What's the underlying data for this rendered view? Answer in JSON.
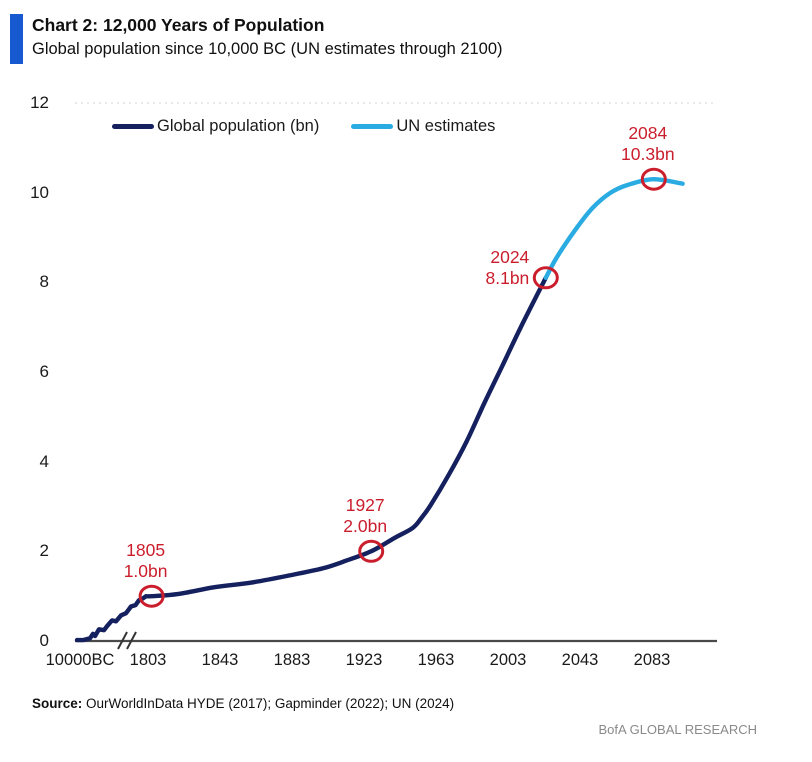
{
  "header": {
    "title": "Chart 2: 12,000 Years of Population",
    "subtitle": "Global population since 10,000 BC (UN estimates through 2100)"
  },
  "legend": {
    "items": [
      {
        "label": "Global population (bn)",
        "color": "#15205f"
      },
      {
        "label": "UN estimates",
        "color": "#2aabe2"
      }
    ]
  },
  "footer": {
    "source_label": "Source:",
    "source_text": " OurWorldInData HYDE (2017); Gapminder (2022); UN (2024)",
    "brand": "BofA GLOBAL RESEARCH"
  },
  "colors": {
    "navy": "#15205f",
    "light_blue": "#2aabe2",
    "annotation_red": "#cb1e2d",
    "accent_blue": "#1659d1",
    "axis": "#4a4a4a",
    "gridline": "#dcdcdc",
    "brand_gray": "#8a8a8a"
  },
  "chart_data": {
    "type": "line",
    "title": "Chart 2: 12,000 Years of Population",
    "subtitle": "Global population since 10,000 BC (UN estimates through 2100)",
    "xlabel": "",
    "ylabel": "",
    "ylim": [
      0,
      12
    ],
    "yticks": [
      0,
      2,
      4,
      6,
      8,
      10,
      12
    ],
    "xticks": [
      {
        "label": "10000BC",
        "year": -10000
      },
      {
        "label": "1803",
        "year": 1803
      },
      {
        "label": "1843",
        "year": 1843
      },
      {
        "label": "1883",
        "year": 1883
      },
      {
        "label": "1923",
        "year": 1923
      },
      {
        "label": "1963",
        "year": 1963
      },
      {
        "label": "2003",
        "year": 2003
      },
      {
        "label": "2043",
        "year": 2043
      },
      {
        "label": "2083",
        "year": 2083
      }
    ],
    "axis_break_between": [
      "10000BC",
      "1803"
    ],
    "grid": "top dotted line only",
    "legend_position": "top",
    "series": [
      {
        "name": "Global population (bn)",
        "color": "#15205f",
        "points": [
          [
            -10000,
            0.02
          ],
          [
            -8974,
            0.02
          ],
          [
            -7777,
            0.06
          ],
          [
            -7264,
            0.16
          ],
          [
            -6922,
            0.11
          ],
          [
            -6238,
            0.26
          ],
          [
            -5383,
            0.24
          ],
          [
            -4870,
            0.33
          ],
          [
            -4015,
            0.46
          ],
          [
            -3331,
            0.44
          ],
          [
            -2476,
            0.57
          ],
          [
            -1621,
            0.62
          ],
          [
            -766,
            0.77
          ],
          [
            0,
            0.8
          ],
          [
            602,
            0.91
          ],
          [
            1286,
            0.95
          ],
          [
            1799,
            1.0
          ],
          [
            1805,
            1.0
          ],
          [
            1820,
            1.05
          ],
          [
            1840,
            1.2
          ],
          [
            1860,
            1.3
          ],
          [
            1880,
            1.45
          ],
          [
            1900,
            1.62
          ],
          [
            1913,
            1.79
          ],
          [
            1927,
            2.0
          ],
          [
            1940,
            2.3
          ],
          [
            1950,
            2.52
          ],
          [
            1955,
            2.75
          ],
          [
            1960,
            3.03
          ],
          [
            1970,
            3.7
          ],
          [
            1980,
            4.45
          ],
          [
            1990,
            5.32
          ],
          [
            2000,
            6.15
          ],
          [
            2010,
            6.99
          ],
          [
            2024,
            8.1
          ]
        ]
      },
      {
        "name": "UN estimates",
        "color": "#2aabe2",
        "points": [
          [
            2024,
            8.1
          ],
          [
            2030,
            8.55
          ],
          [
            2040,
            9.15
          ],
          [
            2050,
            9.66
          ],
          [
            2060,
            10.0
          ],
          [
            2070,
            10.18
          ],
          [
            2084,
            10.3
          ],
          [
            2100,
            10.2
          ]
        ]
      }
    ],
    "annotations": [
      {
        "year": 1805,
        "value": 1.0,
        "line1": "1805",
        "line2": "1.0bn",
        "placement": "above"
      },
      {
        "year": 1927,
        "value": 2.0,
        "line1": "1927",
        "line2": "2.0bn",
        "placement": "above"
      },
      {
        "year": 2024,
        "value": 8.1,
        "line1": "2024",
        "line2": "8.1bn",
        "placement": "left"
      },
      {
        "year": 2084,
        "value": 10.3,
        "line1": "2084",
        "line2": "10.3bn",
        "placement": "above"
      }
    ]
  }
}
